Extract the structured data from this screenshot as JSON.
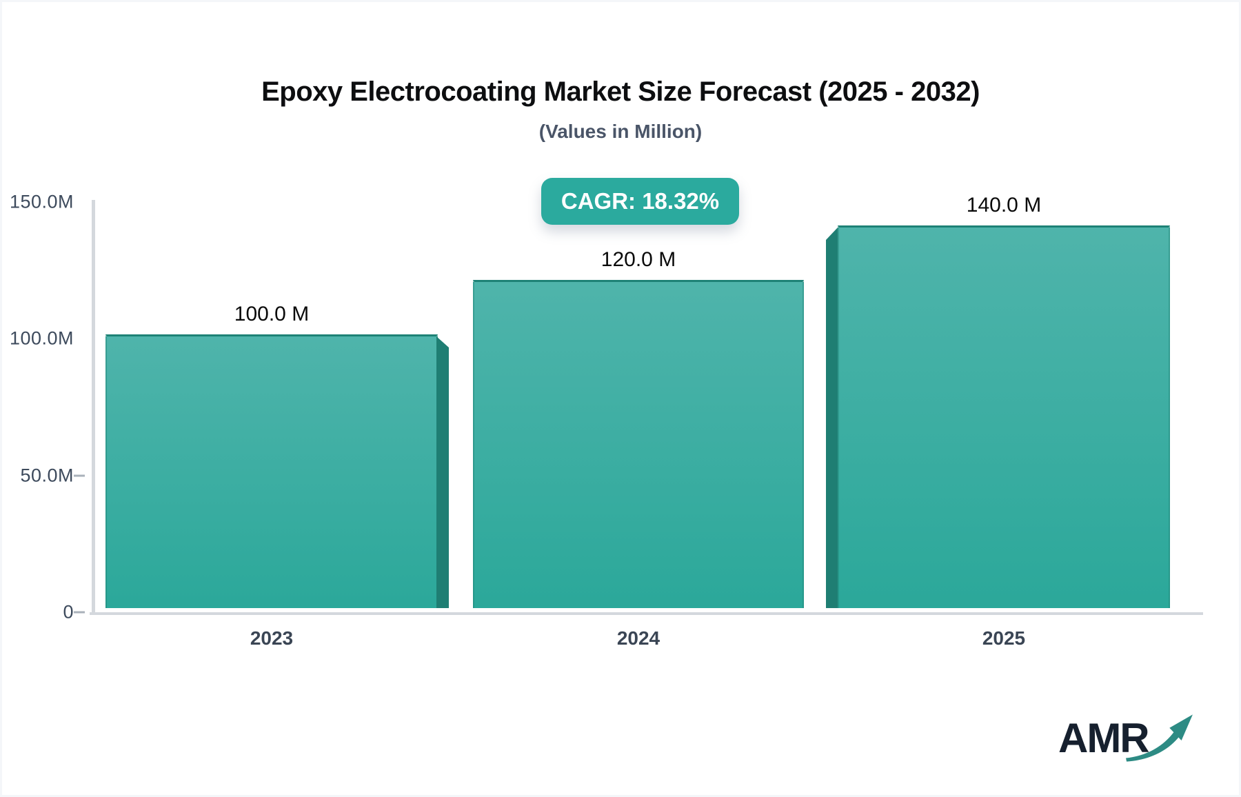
{
  "header": {
    "title": "Epoxy Electrocoating Market Size Forecast (2025 - 2032)",
    "subtitle": "(Values in Million)"
  },
  "badge": {
    "label": "CAGR: 18.32%"
  },
  "chart_data": {
    "type": "bar",
    "title": "Epoxy Electrocoating Market Size Forecast (2025 - 2032)",
    "subtitle": "(Values in Million)",
    "unit": "Million",
    "cagr_percent": "18.32%",
    "categories": [
      "2023",
      "2024",
      "2025"
    ],
    "values": [
      100.0,
      120.0,
      140.0
    ],
    "value_labels": [
      "100.0 M",
      "120.0 M",
      "140.0 M"
    ],
    "ylim": [
      0,
      150
    ],
    "yticks": [
      {
        "label": "150.0M",
        "value": 150,
        "dash": false
      },
      {
        "label": "100.0M",
        "value": 100,
        "dash": false
      },
      {
        "label": "50.0M",
        "value": 50,
        "dash": true
      },
      {
        "label": "0",
        "value": 0,
        "dash": true
      }
    ],
    "grid": false,
    "legend": "none",
    "bar_style": "3d-extruded"
  },
  "logo": {
    "text": "AMR",
    "icon": "growth-arrow-icon"
  },
  "colors": {
    "accent": "#2baa9e",
    "bar_top": "#4fb4ab",
    "bar_bottom": "#2ba89a",
    "bevel": "#1f7e73",
    "axis": "#d4d8dd",
    "title_text": "#0d0e10",
    "subtitle_text": "#4a5568",
    "tick_text": "#3d4a5c",
    "logo_text": "#16202e",
    "logo_arrow": "#2d8b84"
  }
}
